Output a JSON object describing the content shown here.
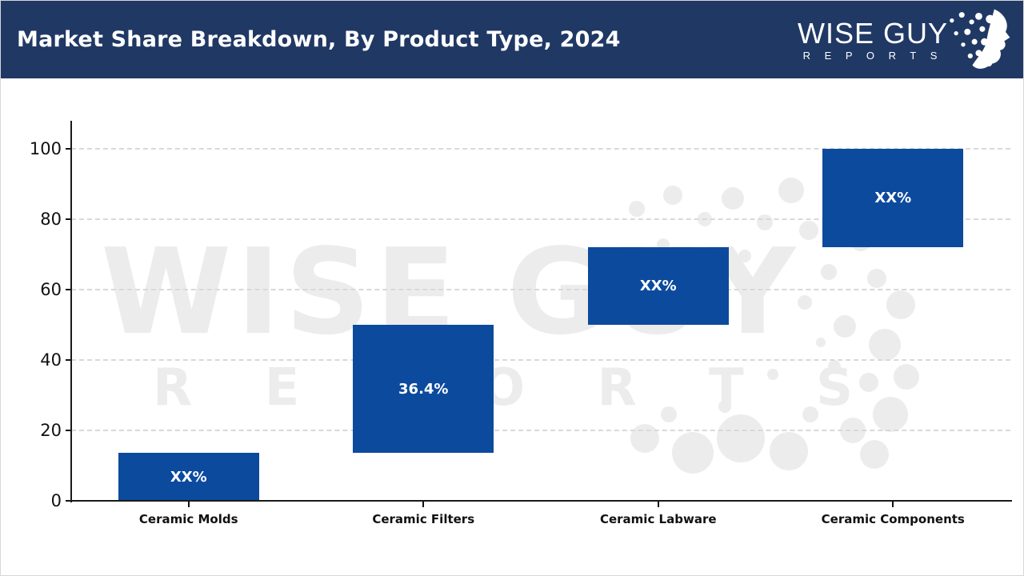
{
  "header": {
    "title": "Market Share Breakdown, By Product Type, 2024",
    "logo": {
      "name": "WISE GUY",
      "tagline": "R E P O R T S"
    }
  },
  "watermark": {
    "line1": "WISE GUY",
    "line2": "R E P O R T S"
  },
  "colors": {
    "header_bg": "#203864",
    "bar": "#0c4a9e",
    "grid": "#d9d9d9",
    "axis": "#1a1a1a",
    "watermark": "#ececec",
    "bar_label_text": "#ffffff"
  },
  "chart_data": {
    "type": "bar",
    "variant": "floating-waterfall",
    "title": "Market Share Breakdown, By Product Type, 2024",
    "categories": [
      "Ceramic Molds",
      "Ceramic Filters",
      "Ceramic Labware",
      "Ceramic Components"
    ],
    "series": [
      {
        "name": "Market Share (%)",
        "base": [
          0,
          13.6,
          50,
          72
        ],
        "top": [
          13.6,
          50,
          72,
          100
        ],
        "values": [
          13.6,
          36.4,
          22,
          28
        ]
      }
    ],
    "bar_labels": [
      "XX%",
      "36.4%",
      "XX%",
      "XX%"
    ],
    "xlabel": "",
    "ylabel": "",
    "yticks": [
      0,
      20,
      40,
      60,
      80,
      100
    ],
    "ylim": [
      0,
      108
    ],
    "grid": "horizontal-dashed",
    "legend": "none"
  }
}
